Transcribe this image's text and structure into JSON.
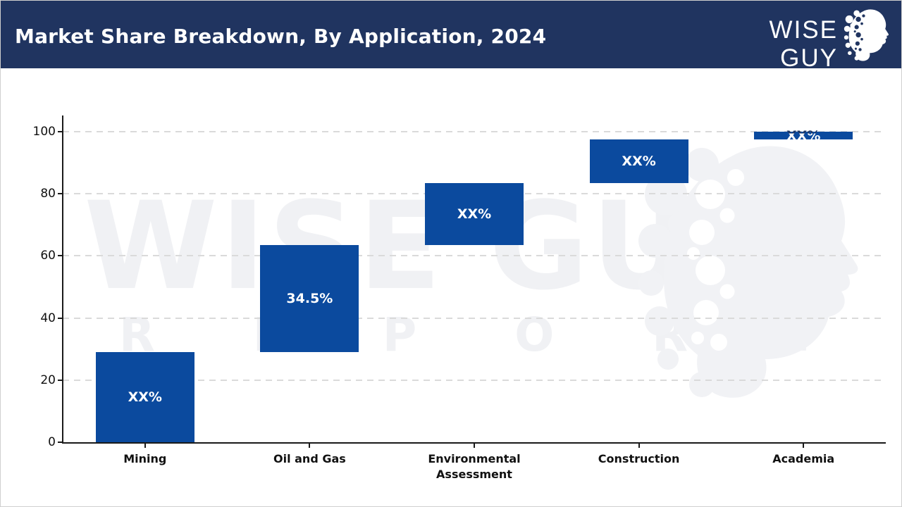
{
  "header": {
    "title": "Market Share Breakdown, By Application, 2024",
    "logo": {
      "line1": "WISE GUY",
      "line2": "R E P O R T S"
    }
  },
  "watermark": {
    "line1": "WISE GUY",
    "line2": "R E P O R T S"
  },
  "colors": {
    "header_bg": "#203460",
    "bar": "#0b4a9e",
    "bar_label": "#ffffff",
    "bar_label_overflow_dark": "#1d3766",
    "grid": "#dadada",
    "axis": "#1a1a1a",
    "watermark": "#f0f1f4",
    "page_border": "#cfcfcf"
  },
  "chart_data": {
    "type": "bar",
    "subtype": "waterfall",
    "title": "Market Share Breakdown, By Application, 2024",
    "categories": [
      "Mining",
      "Oil and Gas",
      "Environmental Assessment",
      "Construction",
      "Academia"
    ],
    "bars": [
      {
        "category": "Mining",
        "label": "XX%",
        "start": 0,
        "end": 29,
        "span": 29
      },
      {
        "category": "Oil and Gas",
        "label": "34.5%",
        "start": 29,
        "end": 63.5,
        "span": 34.5
      },
      {
        "category": "Environmental Assessment",
        "label": "XX%",
        "start": 63.5,
        "end": 83.5,
        "span": 20
      },
      {
        "category": "Construction",
        "label": "XX%",
        "start": 83.5,
        "end": 97.5,
        "span": 14
      },
      {
        "category": "Academia",
        "label": "XX%",
        "start": 97.5,
        "end": 100,
        "span": 2.5
      }
    ],
    "xlabel": "",
    "ylabel": "",
    "ylim": [
      0,
      100
    ],
    "yticks": [
      0,
      20,
      40,
      60,
      80,
      100
    ],
    "grid": "horizontal-dashed",
    "legend": "none"
  }
}
